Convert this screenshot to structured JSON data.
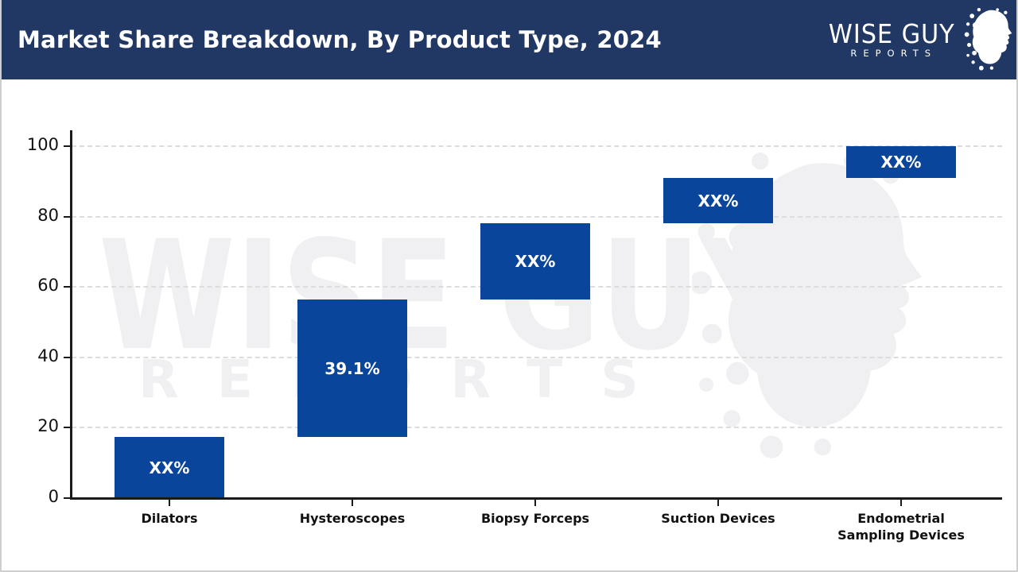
{
  "header": {
    "title": "Market Share Breakdown, By Product Type, 2024",
    "logo_line1": "WISE GUY",
    "logo_line2": "REPORTS"
  },
  "watermark": {
    "line1": "WISE GUY",
    "line2": "REPORTS"
  },
  "colors": {
    "header_bg": "#213865",
    "bar_fill": "#0a459c",
    "bar_label": "#ffffff",
    "gridline": "#dcdcdc",
    "axis": "#1a1a1a",
    "watermark": "#f0f0f2",
    "title_text": "#ffffff",
    "tick_text": "#111111"
  },
  "chart_data": {
    "type": "bar",
    "subtype": "waterfall",
    "title": "Market Share Breakdown, By Product Type, 2024",
    "xlabel": "",
    "ylabel": "",
    "ylim": [
      0,
      100
    ],
    "y_ticks": [
      0,
      20,
      40,
      60,
      80,
      100
    ],
    "grid": "horizontal dashed",
    "legend": "none",
    "categories": [
      "Dilators",
      "Hysteroscopes",
      "Biopsy Forceps",
      "Suction Devices",
      "Endometrial Sampling Devices"
    ],
    "segments": [
      {
        "category": "Dilators",
        "start": 0,
        "end": 17.3,
        "height": 17.3,
        "value_label": "XX%"
      },
      {
        "category": "Hysteroscopes",
        "start": 17.3,
        "end": 56.4,
        "height": 39.1,
        "value_label": "39.1%"
      },
      {
        "category": "Biopsy Forceps",
        "start": 56.4,
        "end": 78.1,
        "height": 21.7,
        "value_label": "XX%"
      },
      {
        "category": "Suction Devices",
        "start": 78.1,
        "end": 90.9,
        "height": 12.8,
        "value_label": "XX%"
      },
      {
        "category": "Endometrial Sampling Devices",
        "start": 90.9,
        "end": 100,
        "height": 9.1,
        "value_label": "XX%"
      }
    ]
  }
}
